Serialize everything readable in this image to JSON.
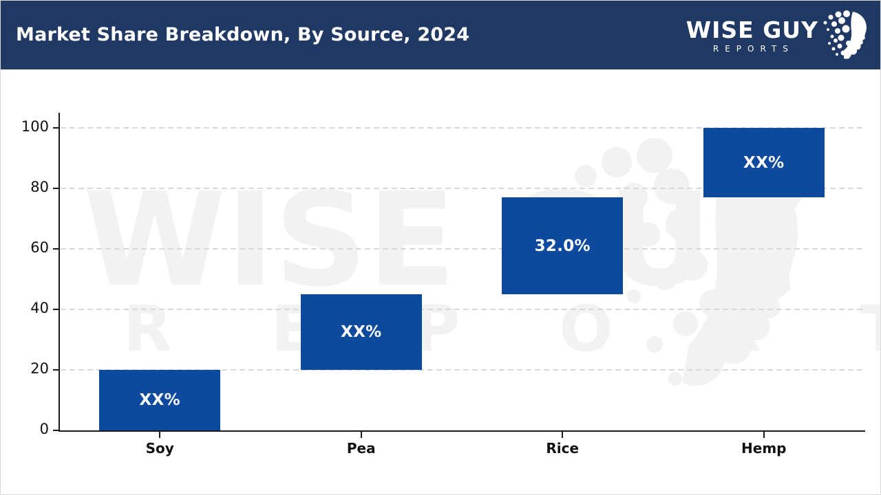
{
  "header": {
    "title": "Market Share Breakdown, By Source, 2024",
    "logo": {
      "line1": "WISE GUY",
      "line2": "REPORTS"
    }
  },
  "watermark": {
    "line1": "WISE GUY",
    "line2": "R E P O R T S"
  },
  "colors": {
    "header_bg": "#203864",
    "bar": "#0d4a9e",
    "grid": "#d9d9d9",
    "axis": "#1a1a1a",
    "watermark": "#f2f2f2",
    "bar_label": "#ffffff"
  },
  "chart_data": {
    "type": "bar",
    "subtype": "waterfall",
    "title": "Market Share Breakdown, By Source, 2024",
    "categories": [
      "Soy",
      "Pea",
      "Rice",
      "Hemp"
    ],
    "segments": [
      {
        "category": "Soy",
        "start": 0,
        "end": 20,
        "value": 20,
        "label": "XX%"
      },
      {
        "category": "Pea",
        "start": 20,
        "end": 45,
        "value": 25,
        "label": "XX%"
      },
      {
        "category": "Rice",
        "start": 45,
        "end": 77,
        "value": 32,
        "label": "32.0%"
      },
      {
        "category": "Hemp",
        "start": 77,
        "end": 100,
        "value": 23,
        "label": "XX%"
      }
    ],
    "ylim": [
      0,
      100
    ],
    "yticks": [
      0,
      20,
      40,
      60,
      80,
      100
    ],
    "xlabel": "",
    "ylabel": "",
    "grid": "horizontal-dashed",
    "legend": "none"
  }
}
